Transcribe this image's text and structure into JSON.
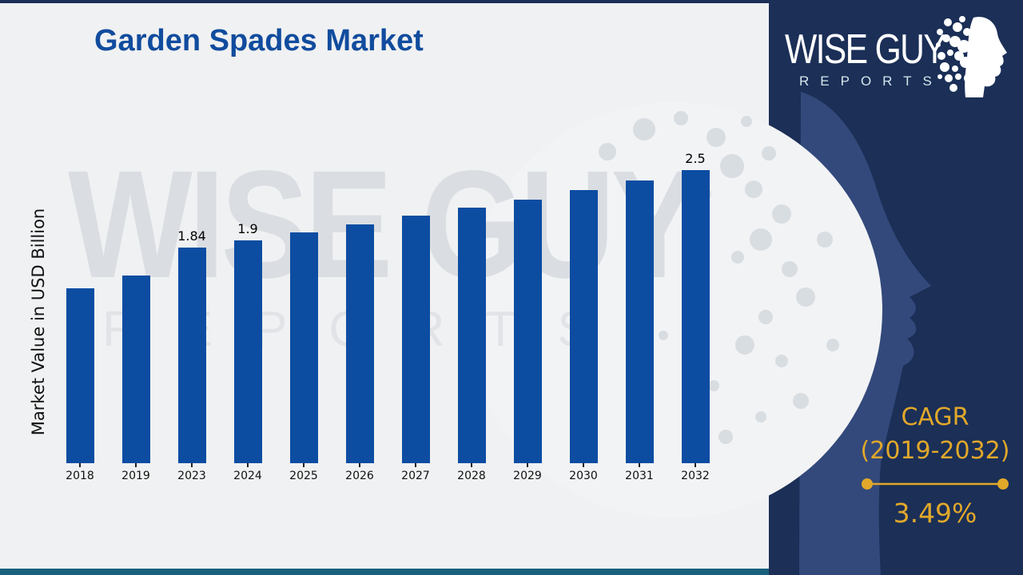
{
  "title": "Garden Spades Market",
  "y_axis_label": "Market Value in USD Billion",
  "watermark": {
    "line1": "WISE GUY",
    "line2": "REPORTS"
  },
  "logo": {
    "brand_line1": "WISE GUY",
    "brand_line2": "REPORTS"
  },
  "cagr": {
    "heading": "CAGR",
    "range": "(2019-2032)",
    "value": "3.49%"
  },
  "colors": {
    "bar": "#0c4da2",
    "title_blue": "#114c9e",
    "panel_navy": "#1b2f57",
    "gold": "#e1a82a",
    "teal_strip": "#19607c",
    "face_silhouette": "#33497b",
    "background": "#f0f1f2"
  },
  "chart_data": {
    "type": "bar",
    "title": "Garden Spades Market",
    "ylabel": "Market Value in USD Billion",
    "categories": [
      "2018",
      "2019",
      "2023",
      "2024",
      "2025",
      "2026",
      "2027",
      "2028",
      "2029",
      "2030",
      "2031",
      "2032"
    ],
    "values": [
      1.49,
      1.6,
      1.84,
      1.9,
      1.97,
      2.04,
      2.11,
      2.18,
      2.25,
      2.33,
      2.41,
      2.5
    ],
    "bar_labels": {
      "2023": "1.84",
      "2024": "1.9",
      "2032": "2.5"
    },
    "ylim": [
      0,
      2.8
    ],
    "grid": false,
    "legend": false
  }
}
